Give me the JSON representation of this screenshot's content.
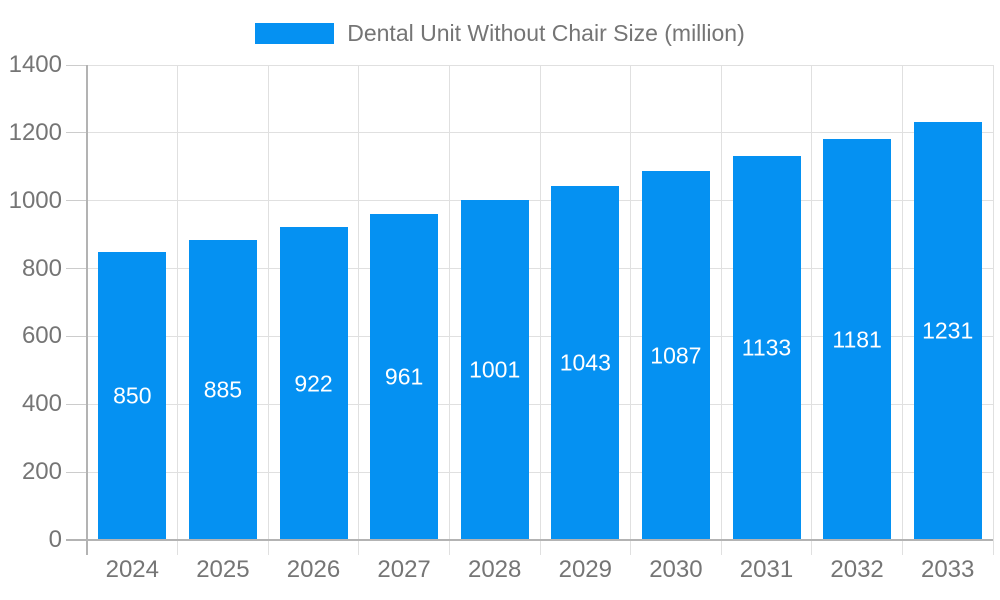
{
  "legend": {
    "label": "Dental Unit Without Chair Size (million)"
  },
  "chart_data": {
    "type": "bar",
    "title": "Dental Unit Without Chair Size (million)",
    "legend_position": "top",
    "grid": true,
    "categories": [
      "2024",
      "2025",
      "2026",
      "2027",
      "2028",
      "2029",
      "2030",
      "2031",
      "2032",
      "2033"
    ],
    "series": [
      {
        "name": "Dental Unit Without Chair Size (million)",
        "values": [
          850,
          885,
          922,
          961,
          1001,
          1043,
          1087,
          1133,
          1181,
          1231
        ]
      }
    ],
    "xlabel": "",
    "ylabel": "",
    "ylim": [
      0,
      1400
    ],
    "ytick_step": 200,
    "ytick_labels": [
      "0",
      "200",
      "400",
      "600",
      "800",
      "1000",
      "1200",
      "1400"
    ],
    "value_labels_shown": true,
    "colors": {
      "bar": "#0591f2",
      "gridline": "#e0e0e0",
      "axis": "#b3b3b3",
      "tick": "#cccccc",
      "axis_text": "#757575",
      "value_text": "#ffffff",
      "background": "#ffffff"
    }
  }
}
